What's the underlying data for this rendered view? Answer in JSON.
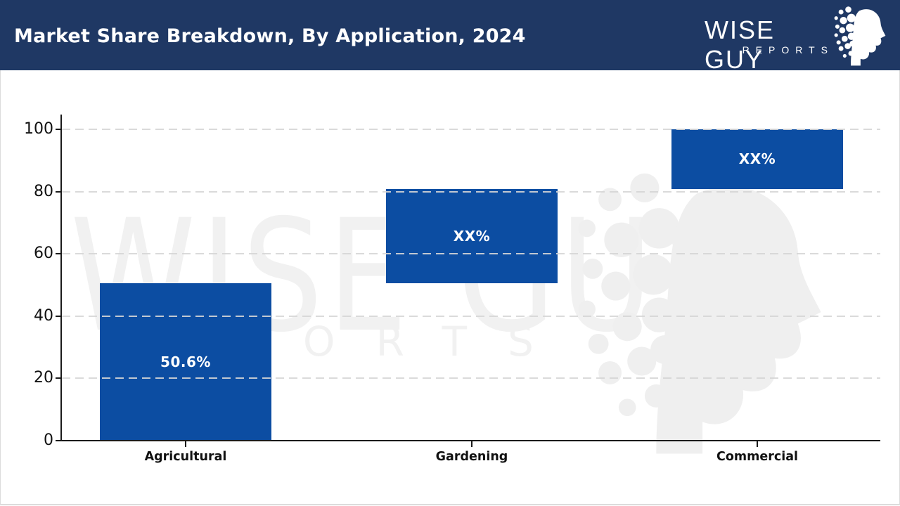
{
  "header": {
    "title": "Market Share Breakdown, By Application, 2024",
    "logo": {
      "brand": "WISE GUY",
      "sub": "REPORTS"
    }
  },
  "watermark": {
    "brand": "WISE GUY",
    "sub": "REPORTS"
  },
  "colors": {
    "header_bg": "#1F3864",
    "bar": "#0C4DA2",
    "axis": "#1a1a1a",
    "grid": "#d6d6d6",
    "value_label": "#ffffff",
    "watermark": "#f1f1f1"
  },
  "chart_data": {
    "type": "bar",
    "subtype": "stepped-waterfall",
    "title": "Market Share Breakdown, By Application, 2024",
    "categories": [
      "Agricultural",
      "Gardening",
      "Commercial"
    ],
    "segments": [
      {
        "category": "Agricultural",
        "start": 0,
        "end": 50.6,
        "value": 50.6,
        "label": "50.6%"
      },
      {
        "category": "Gardening",
        "start": 50.6,
        "end": 80.9,
        "value": 30.3,
        "label": "XX%"
      },
      {
        "category": "Commercial",
        "start": 80.9,
        "end": 100,
        "value": 19.1,
        "label": "XX%"
      }
    ],
    "yticks": [
      0,
      20,
      40,
      60,
      80,
      100
    ],
    "ylim": [
      0,
      105
    ],
    "xlabel": "",
    "ylabel": "",
    "grid": "horizontal-dashed",
    "legend": false,
    "bar_color": "#0C4DA2",
    "value_label_color": "#ffffff"
  }
}
